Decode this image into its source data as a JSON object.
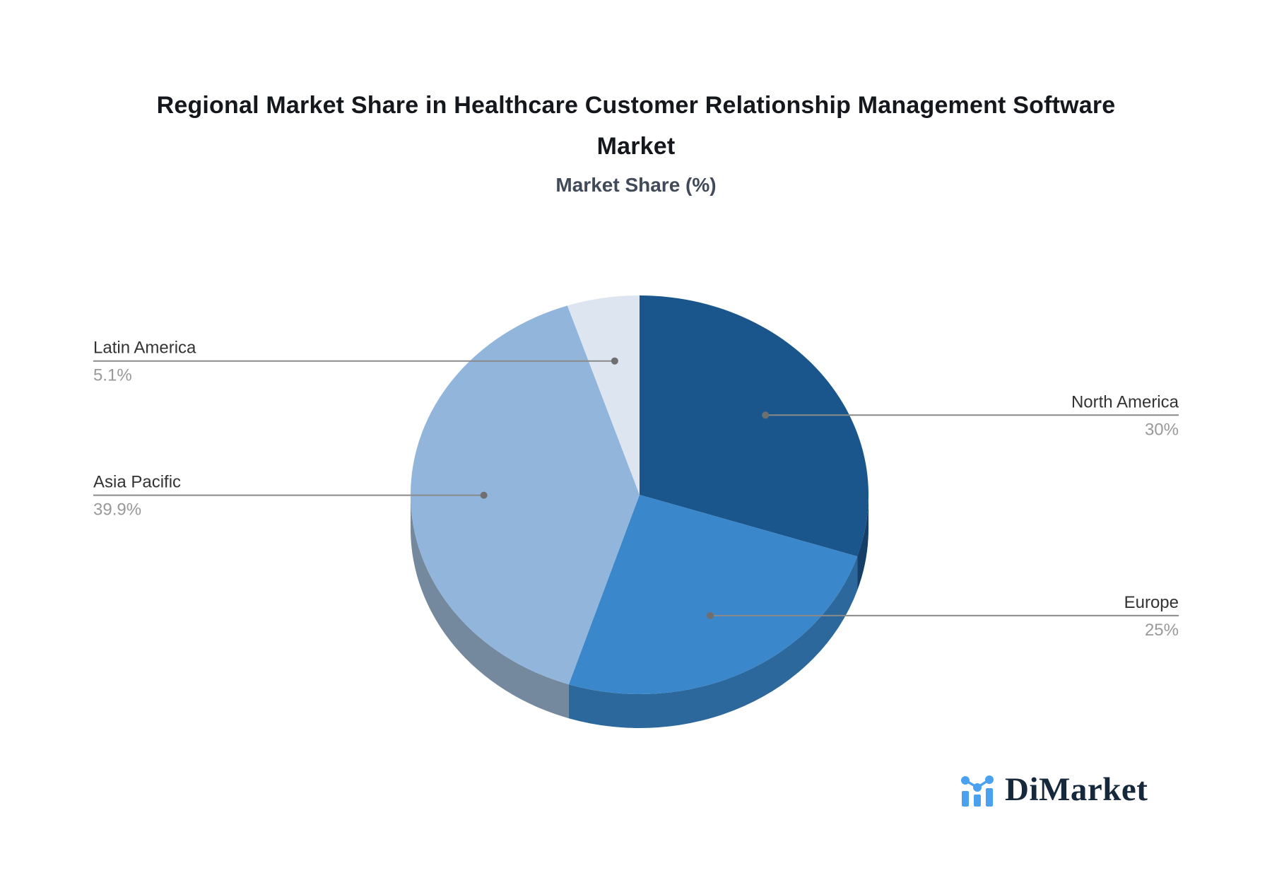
{
  "title": {
    "line1": "Regional Market Share in Healthcare Customer Relationship Management Software",
    "line2": "Market",
    "subtitle": "Market Share (%)"
  },
  "chart_data": {
    "type": "pie",
    "title": "Regional Market Share in Healthcare Customer Relationship Management Software Market",
    "subtitle": "Market Share (%)",
    "unit": "%",
    "three_d": true,
    "labels_outside": true,
    "start_angle_deg": -90,
    "direction": "clockwise",
    "slices": [
      {
        "label": "North America",
        "value": 30,
        "display_value": "30%",
        "color": "#1A568C",
        "side_color": "#153F66"
      },
      {
        "label": "Europe",
        "value": 25,
        "display_value": "25%",
        "color": "#3A87CB",
        "side_color": "#2D689C"
      },
      {
        "label": "Asia Pacific",
        "value": 39.9,
        "display_value": "39.9%",
        "color": "#92B5DC",
        "side_color": "#75899E"
      },
      {
        "label": "Latin America",
        "value": 5.1,
        "display_value": "5.1%",
        "color": "#DCE5F0",
        "side_color": "#AEBDD2"
      }
    ],
    "leader_line_color": "#8a8a8a",
    "leader_dot_color": "#6f6f6f",
    "label_name_color": "#333333",
    "label_value_color": "#999999"
  },
  "logo": {
    "text": "DiMarket",
    "icon": "bar-chart-with-line-icon",
    "accent_color": "#4AA1EF",
    "text_color": "#16283C"
  }
}
